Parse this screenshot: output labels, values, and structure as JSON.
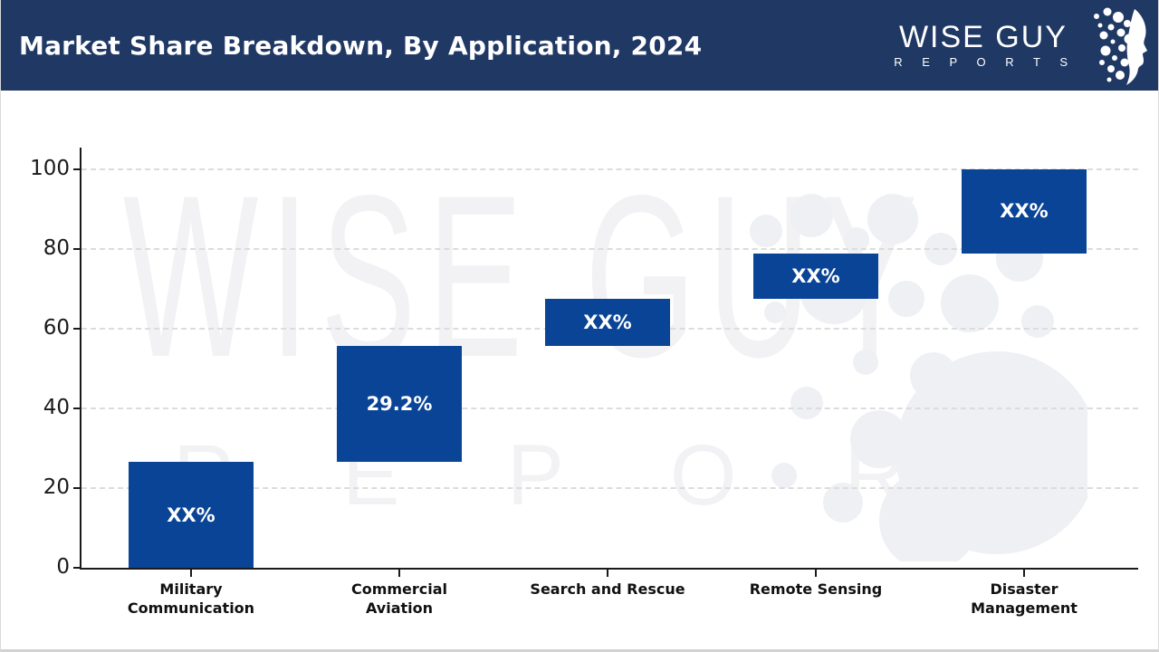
{
  "logo": {
    "line1": "WISE GUY",
    "line2": "R E P O R T S"
  },
  "watermark": {
    "line1": "WISE GUY",
    "line2": "R E P O R T S"
  },
  "colors": {
    "header_bg": "#203864",
    "bar": "#0a4496",
    "axis": "#1a1a1a",
    "gridline": "#dcdcdc",
    "title_text": "#ffffff",
    "bar_label_text": "#ffffff",
    "watermark": "#f2f2f5"
  },
  "chart_data": {
    "type": "bar",
    "subtype": "waterfall",
    "title": "Market Share Breakdown, By Application, 2024",
    "xlabel": "",
    "ylabel": "",
    "categories": [
      "Military\nCommunication",
      "Commercial\nAviation",
      "Search and Rescue",
      "Remote Sensing",
      "Disaster\nManagement"
    ],
    "segments": [
      {
        "category": "Military Communication",
        "start": 0,
        "end": 26.5,
        "height": 26.5,
        "label": "XX%"
      },
      {
        "category": "Commercial Aviation",
        "start": 26.5,
        "end": 55.7,
        "height": 29.2,
        "label": "29.2%"
      },
      {
        "category": "Search and Rescue",
        "start": 55.7,
        "end": 67.4,
        "height": 11.7,
        "label": "XX%"
      },
      {
        "category": "Remote Sensing",
        "start": 67.4,
        "end": 78.9,
        "height": 11.5,
        "label": "XX%"
      },
      {
        "category": "Disaster Management",
        "start": 78.9,
        "end": 100,
        "height": 21.1,
        "label": "XX%"
      }
    ],
    "yticks": [
      0,
      20,
      40,
      60,
      80,
      100
    ],
    "ylim": [
      0,
      105
    ],
    "grid": "dashed horizontal",
    "legend": "none"
  }
}
